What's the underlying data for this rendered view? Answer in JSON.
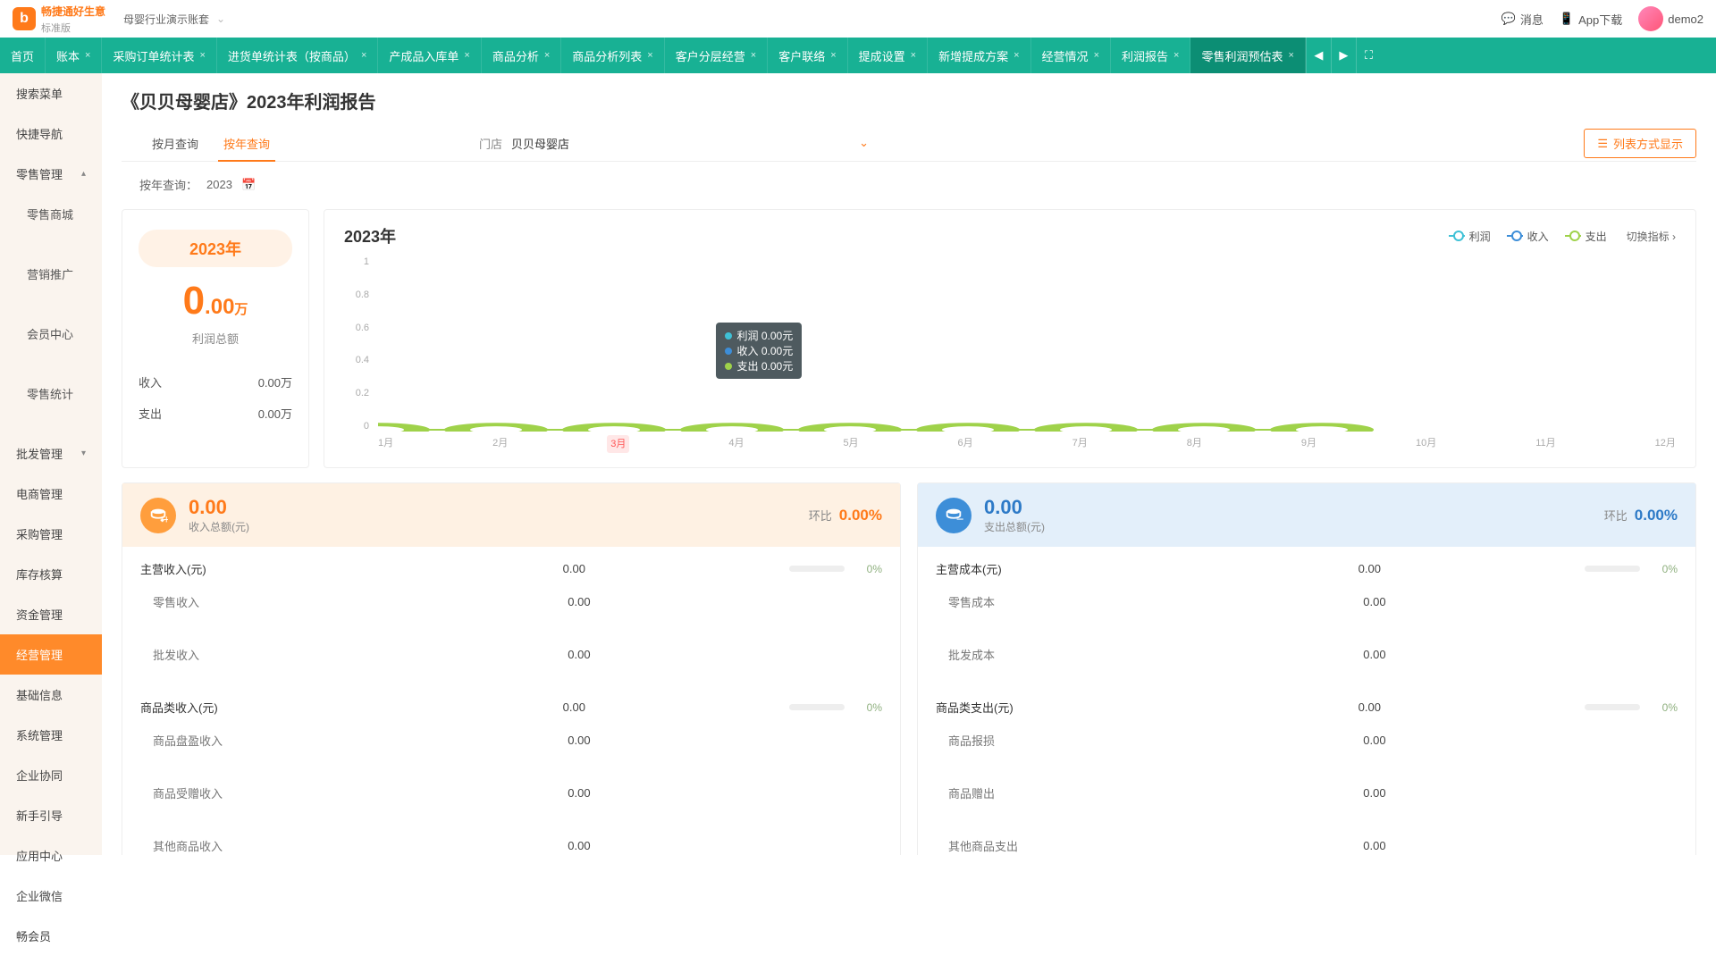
{
  "header": {
    "brand": "畅捷通好生意",
    "edition": "标准版",
    "account": "母婴行业演示账套",
    "msg": "消息",
    "download": "App下载",
    "user": "demo2"
  },
  "tabs": [
    {
      "label": "首页",
      "close": false
    },
    {
      "label": "账本",
      "close": true
    },
    {
      "label": "采购订单统计表",
      "close": true
    },
    {
      "label": "进货单统计表（按商品）",
      "close": true
    },
    {
      "label": "产成品入库单",
      "close": true
    },
    {
      "label": "商品分析",
      "close": true
    },
    {
      "label": "商品分析列表",
      "close": true
    },
    {
      "label": "客户分层经营",
      "close": true
    },
    {
      "label": "客户联络",
      "close": true
    },
    {
      "label": "提成设置",
      "close": true
    },
    {
      "label": "新增提成方案",
      "close": true
    },
    {
      "label": "经营情况",
      "close": true
    },
    {
      "label": "利润报告",
      "close": true
    },
    {
      "label": "零售利润预估表",
      "close": true,
      "active": true
    }
  ],
  "side": {
    "search": "搜索菜单",
    "quick": "快捷导航",
    "retail": "零售管理",
    "retail_items": [
      "零售商城",
      "营销推广",
      "会员中心",
      "零售统计"
    ],
    "items": [
      "批发管理",
      "电商管理",
      "采购管理",
      "库存核算",
      "资金管理",
      "经营管理",
      "基础信息",
      "系统管理",
      "企业协同",
      "新手引导",
      "应用中心",
      "企业微信",
      "畅会员"
    ],
    "active": "经营管理"
  },
  "page": {
    "title": "《贝贝母婴店》2023年利润报告",
    "qtabs": {
      "month": "按月查询",
      "year": "按年查询"
    },
    "store_lbl": "门店",
    "store": "贝贝母婴店",
    "list_btn": "列表方式显示",
    "year_query_lbl": "按年查询：",
    "year": "2023"
  },
  "summary": {
    "year": "2023年",
    "big_int": "0",
    "big_dec": ".00",
    "big_unit": "万",
    "label": "利润总额",
    "rows": [
      {
        "k": "收入",
        "v": "0.00万"
      },
      {
        "k": "支出",
        "v": "0.00万"
      }
    ]
  },
  "chart": {
    "title": "2023年",
    "legend": [
      {
        "name": "利润",
        "color": "#3fc1d6"
      },
      {
        "name": "收入",
        "color": "#3d8ed8"
      },
      {
        "name": "支出",
        "color": "#9fd24a"
      }
    ],
    "switch": "切换指标",
    "yticks": [
      "1",
      "0.8",
      "0.6",
      "0.4",
      "0.2",
      "0"
    ],
    "xlabels": [
      "1月",
      "2月",
      "3月",
      "4月",
      "5月",
      "6月",
      "7月",
      "8月",
      "9月",
      "10月",
      "11月",
      "12月"
    ],
    "highlight_idx": 2,
    "tooltip": [
      {
        "name": "利润",
        "val": "0.00元",
        "color": "#3fc1d6"
      },
      {
        "name": "收入",
        "val": "0.00元",
        "color": "#3d8ed8"
      },
      {
        "name": "支出",
        "val": "0.00元",
        "color": "#9fd24a"
      }
    ],
    "line_color": "#9fd24a",
    "ylim": [
      0,
      1
    ]
  },
  "income": {
    "total": "0.00",
    "total_lbl": "收入总额(元)",
    "hb_lbl": "环比",
    "hb": "0.00%",
    "rows": [
      {
        "name": "主营收入(元)",
        "val": "0.00",
        "pct": "0%",
        "head": true
      },
      {
        "name": "零售收入",
        "val": "0.00"
      },
      {
        "name": "批发收入",
        "val": "0.00"
      },
      {
        "name": "商品类收入(元)",
        "val": "0.00",
        "pct": "0%",
        "head": true
      },
      {
        "name": "商品盘盈收入",
        "val": "0.00"
      },
      {
        "name": "商品受赠收入",
        "val": "0.00"
      },
      {
        "name": "其他商品收入",
        "val": "0.00"
      }
    ]
  },
  "expense": {
    "total": "0.00",
    "total_lbl": "支出总额(元)",
    "hb_lbl": "环比",
    "hb": "0.00%",
    "rows": [
      {
        "name": "主营成本(元)",
        "val": "0.00",
        "pct": "0%",
        "head": true
      },
      {
        "name": "零售成本",
        "val": "0.00"
      },
      {
        "name": "批发成本",
        "val": "0.00"
      },
      {
        "name": "商品类支出(元)",
        "val": "0.00",
        "pct": "0%",
        "head": true
      },
      {
        "name": "商品报损",
        "val": "0.00"
      },
      {
        "name": "商品赠出",
        "val": "0.00"
      },
      {
        "name": "其他商品支出",
        "val": "0.00"
      }
    ]
  }
}
